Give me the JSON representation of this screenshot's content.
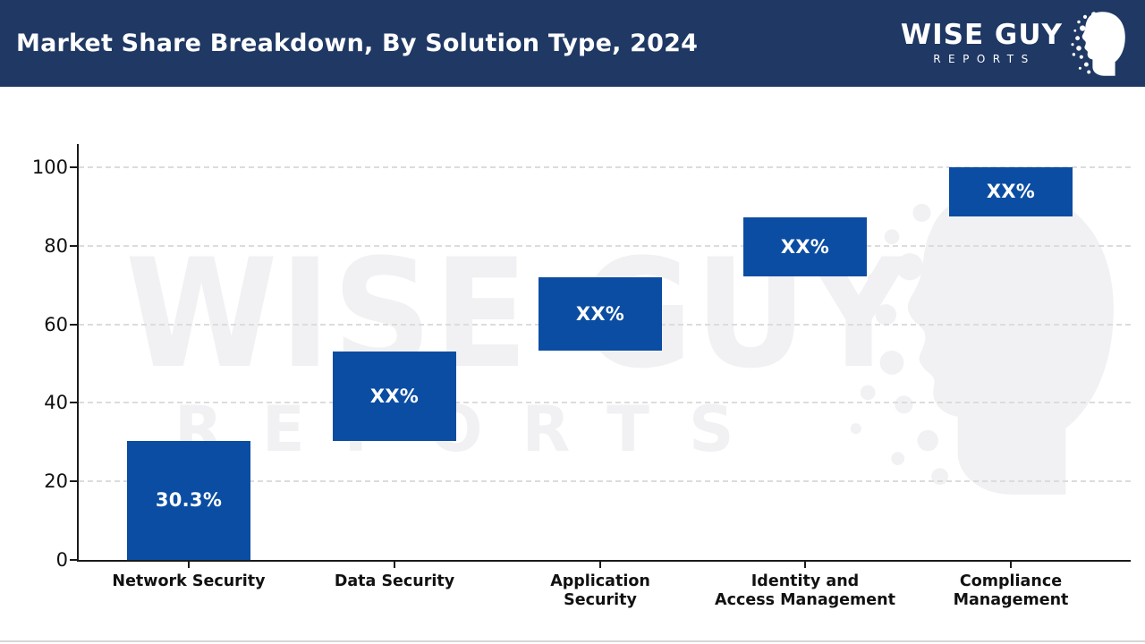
{
  "header": {
    "title": "Market Share Breakdown, By Solution Type, 2024",
    "logo": {
      "line1": "WISE GUY",
      "line2": "REPORTS"
    }
  },
  "watermark": {
    "line1": "WISE GUY",
    "line2": "REPORTS"
  },
  "chart_data": {
    "type": "bar",
    "subtype": "waterfall",
    "title": "Market Share Breakdown, By Solution Type, 2024",
    "categories": [
      "Network Security",
      "Data Security",
      "Application Security",
      "Identity and Access Management",
      "Compliance Management"
    ],
    "tick_labels": [
      "Network Security",
      "Data Security",
      "Application\nSecurity",
      "Identity and\nAccess Management",
      "Compliance\nManagement"
    ],
    "series": [
      {
        "name": "Market Share",
        "segments": [
          {
            "category": "Network Security",
            "start": 0,
            "end": 30.3,
            "label": "30.3%"
          },
          {
            "category": "Data Security",
            "start": 30.3,
            "end": 53.0,
            "label": "XX%"
          },
          {
            "category": "Application Security",
            "start": 53.3,
            "end": 72.0,
            "label": "XX%"
          },
          {
            "category": "Identity and Access Management",
            "start": 72.3,
            "end": 87.2,
            "label": "XX%"
          },
          {
            "category": "Compliance Management",
            "start": 87.5,
            "end": 100.0,
            "label": "XX%"
          }
        ]
      }
    ],
    "bar_labels": [
      "30.3%",
      "XX%",
      "XX%",
      "XX%",
      "XX%"
    ],
    "xlabel": "",
    "ylabel": "",
    "ylim": [
      0,
      100
    ],
    "yticks": [
      0,
      20,
      40,
      60,
      80,
      100
    ],
    "grid": "horizontal-dashed",
    "legend": "none",
    "colors": {
      "bar": "#0b4da2",
      "bar_label": "#ffffff",
      "header_bg": "#1f3864",
      "header_text": "#ffffff",
      "grid_line": "#dcdcdc",
      "axis": "#1a1a1a",
      "watermark": "#f1f1f4"
    }
  }
}
